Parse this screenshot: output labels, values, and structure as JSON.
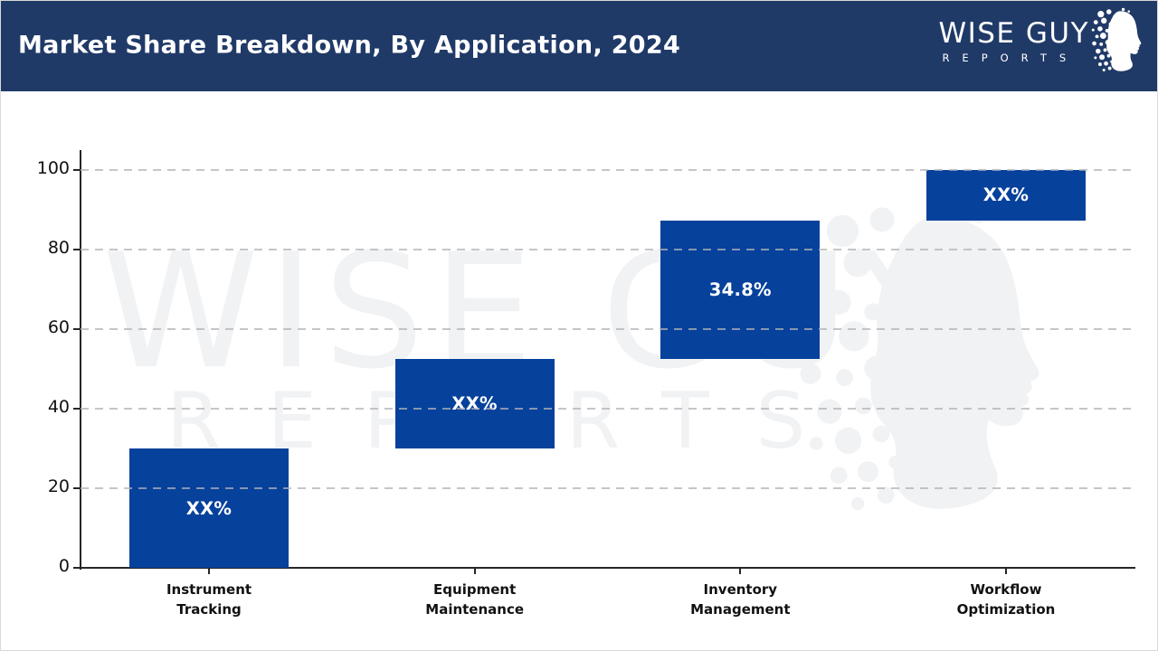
{
  "header": {
    "title": "Market Share Breakdown, By Application, 2024",
    "logo": {
      "line1": "WISE GUY",
      "line2": "REPORTS"
    }
  },
  "watermark": {
    "line1": "WISE GUY",
    "line2": "REPORTS"
  },
  "colors": {
    "header_bg": "#203a68",
    "bar": "#06419c",
    "axis": "#262626",
    "grid": "#c9c9cd",
    "bar_label": "#ffffff"
  },
  "chart_data": {
    "type": "bar",
    "subtype": "waterfall",
    "title": "Market Share Breakdown, By Application, 2024",
    "categories": [
      [
        "Instrument",
        "Tracking"
      ],
      [
        "Equipment",
        "Maintenance"
      ],
      [
        "Inventory",
        "Management"
      ],
      [
        "Workflow",
        "Optimization"
      ]
    ],
    "bars": [
      {
        "category": "Instrument Tracking",
        "start": 0,
        "end": 30,
        "label": "XX%"
      },
      {
        "category": "Equipment Maintenance",
        "start": 30,
        "end": 52.5,
        "label": "XX%"
      },
      {
        "category": "Inventory Management",
        "start": 52.5,
        "end": 87.3,
        "label": "34.8%"
      },
      {
        "category": "Workflow Optimization",
        "start": 87.3,
        "end": 100,
        "label": "XX%"
      }
    ],
    "ylim": [
      0,
      100
    ],
    "yticks": [
      0,
      20,
      40,
      60,
      80,
      100
    ],
    "xlabel": "",
    "ylabel": "",
    "grid": "horizontal-dashed-over-bars",
    "legend": "none",
    "bar_color": "#06419c"
  }
}
